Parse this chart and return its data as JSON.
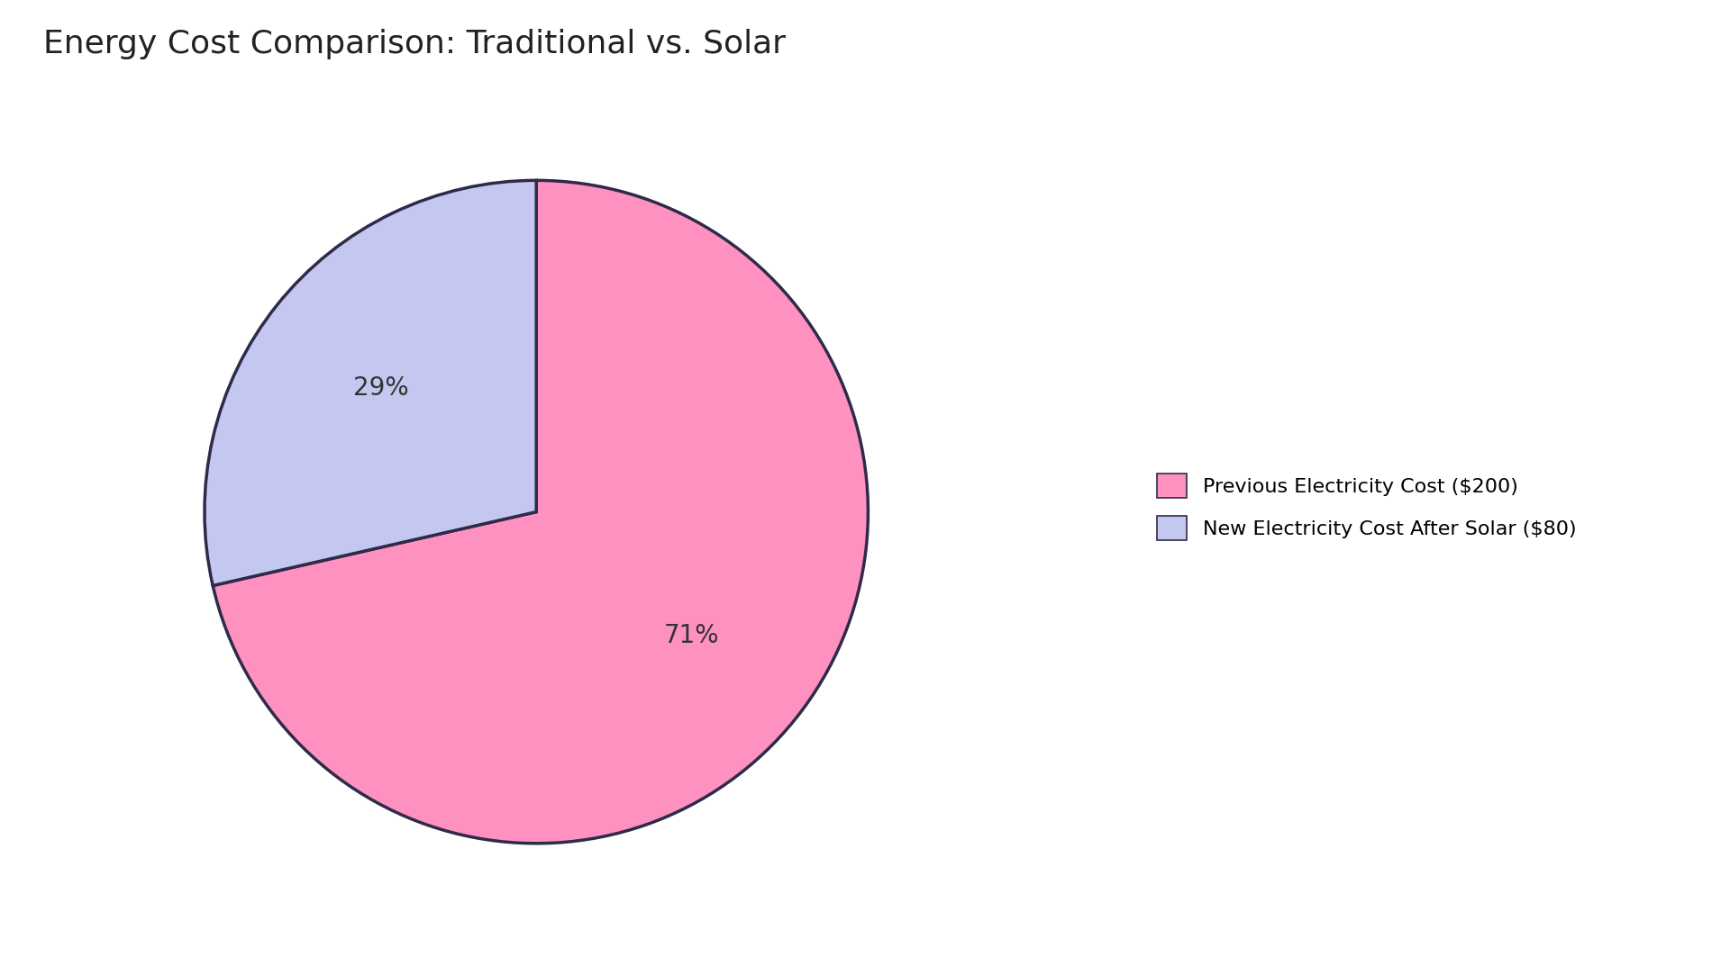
{
  "title": "Energy Cost Comparison: Traditional vs. Solar",
  "values": [
    200,
    80
  ],
  "labels": [
    "Previous Electricity Cost ($200)",
    "New Electricity Cost After Solar ($80)"
  ],
  "colors": [
    "#FF91C1",
    "#C4C8F0"
  ],
  "edge_color": "#2E2A4A",
  "edge_width": 2.5,
  "autopct_values": [
    "71%",
    "29%"
  ],
  "background_color": "#FFFFFF",
  "title_fontsize": 26,
  "legend_fontsize": 16,
  "autopct_fontsize": 20,
  "startangle": 90
}
